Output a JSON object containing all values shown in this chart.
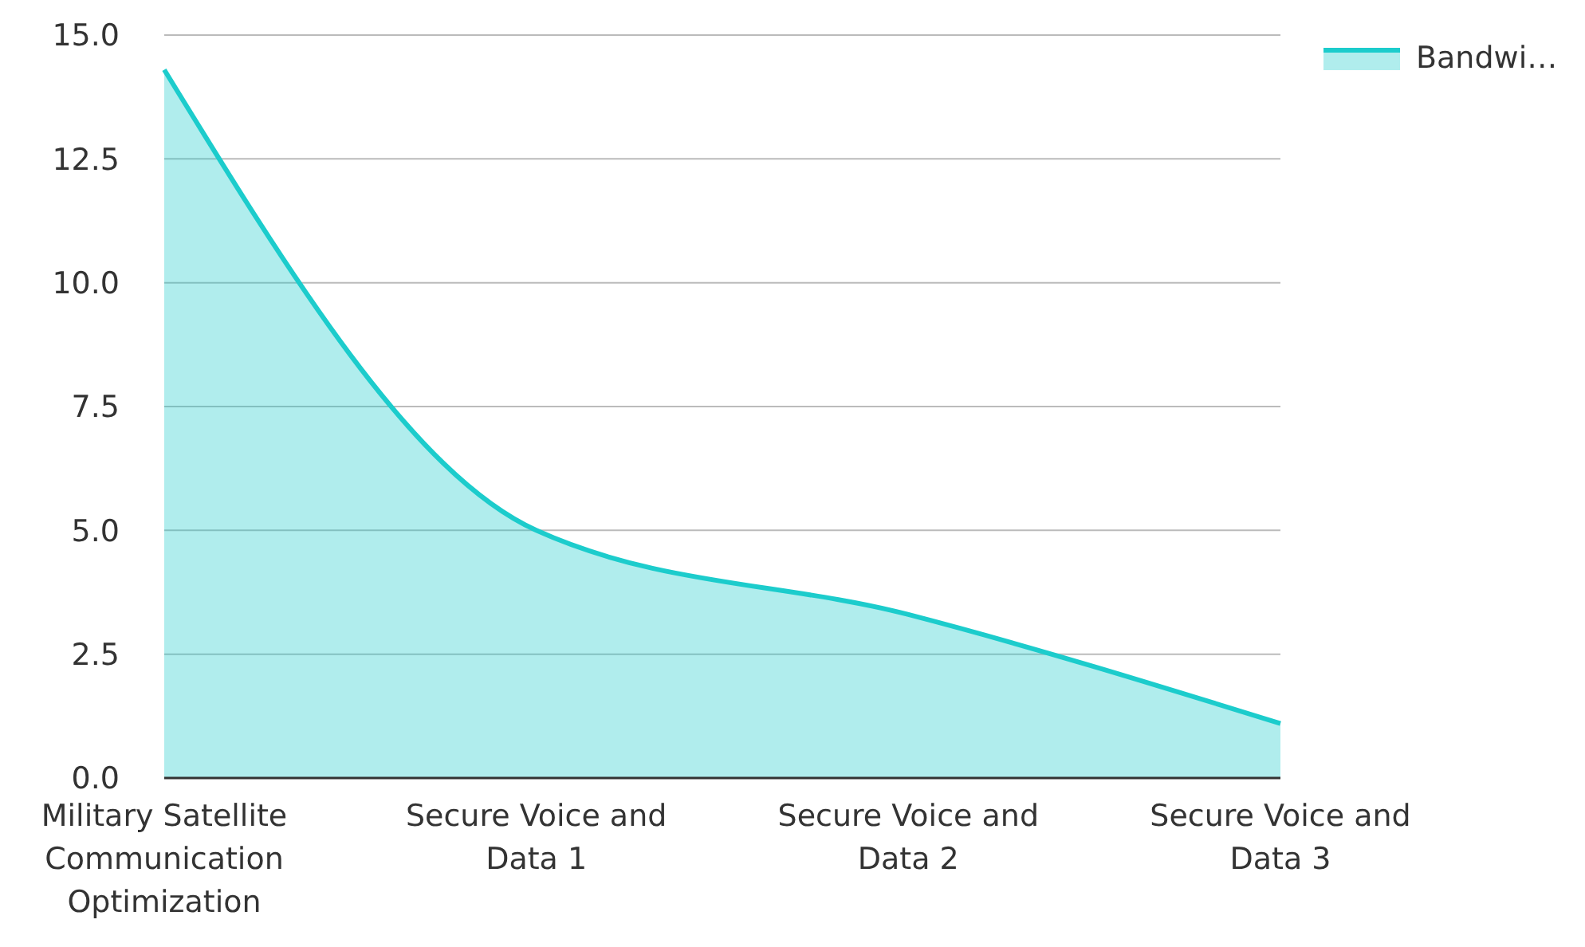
{
  "chart_data": {
    "type": "area",
    "categories": [
      "Military Satellite Communication Optimization",
      "Secure Voice and Data 1",
      "Secure Voice and Data 2",
      "Secure Voice and Data 3"
    ],
    "series": [
      {
        "name": "Bandwi…",
        "color": "#1ccccc",
        "values": [
          14.3,
          5.0,
          3.3,
          1.1
        ]
      }
    ],
    "ylim": [
      0,
      15
    ],
    "yticks": [
      {
        "value": 0,
        "label": "0.0"
      },
      {
        "value": 2.5,
        "label": "2.5"
      },
      {
        "value": 5,
        "label": "5.0"
      },
      {
        "value": 7.5,
        "label": "7.5"
      },
      {
        "value": 10,
        "label": "10.0"
      },
      {
        "value": 12.5,
        "label": "12.5"
      },
      {
        "value": 15,
        "label": "15.0"
      }
    ],
    "grid": "y",
    "legend": "top right"
  }
}
